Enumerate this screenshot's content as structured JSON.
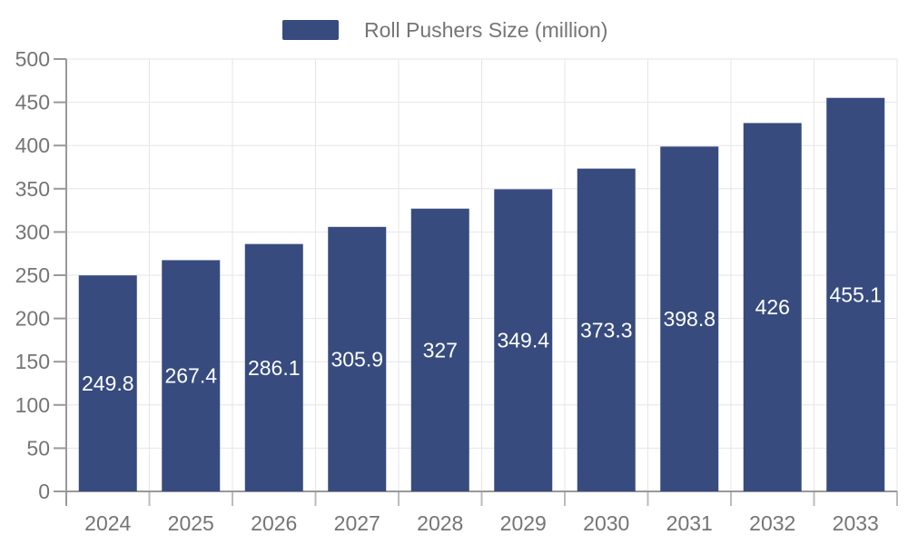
{
  "legend": {
    "label": "Roll Pushers Size (million)"
  },
  "chart_data": {
    "type": "bar",
    "title": "Roll Pushers Size (million)",
    "categories": [
      "2024",
      "2025",
      "2026",
      "2027",
      "2028",
      "2029",
      "2030",
      "2031",
      "2032",
      "2033"
    ],
    "values": [
      249.8,
      267.4,
      286.1,
      305.9,
      327,
      349.4,
      373.3,
      398.8,
      426,
      455.1
    ],
    "series": [
      {
        "name": "Roll Pushers Size (million)",
        "values": [
          249.8,
          267.4,
          286.1,
          305.9,
          327,
          349.4,
          373.3,
          398.8,
          426,
          455.1
        ]
      }
    ],
    "xlabel": "",
    "ylabel": "",
    "ylim": [
      0,
      500
    ],
    "ytick_step": 50,
    "yticks": [
      0,
      50,
      100,
      150,
      200,
      250,
      300,
      350,
      400,
      450,
      500
    ],
    "grid": true,
    "legend_position": "top-center",
    "bar_label_position": "inside-middle",
    "colors": {
      "bar": "#374b7e",
      "bar_label": "#ffffff",
      "axis": "#999999",
      "x_tick": "#bbbbbb",
      "grid": "#e6e6e6",
      "tick_label": "#757575",
      "legend_text": "#757575",
      "background": "#ffffff"
    }
  }
}
